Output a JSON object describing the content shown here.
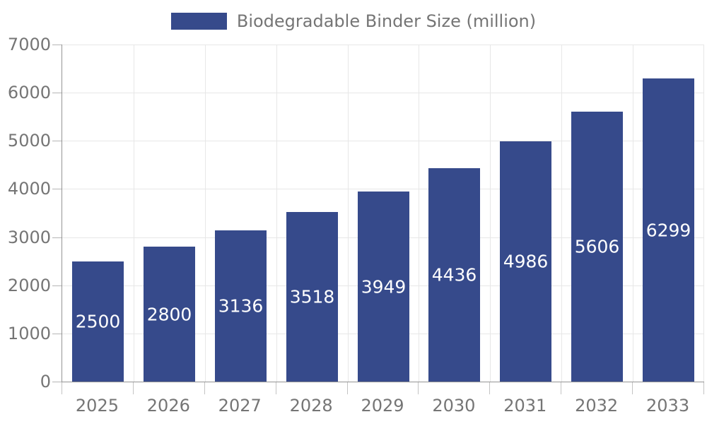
{
  "legend": {
    "label": "Biodegradable Binder Size (million)"
  },
  "chart_data": {
    "type": "bar",
    "title": "Biodegradable Binder Size (million)",
    "categories": [
      "2025",
      "2026",
      "2027",
      "2028",
      "2029",
      "2030",
      "2031",
      "2032",
      "2033"
    ],
    "values": [
      2500,
      2800,
      3136,
      3518,
      3949,
      4436,
      4986,
      5606,
      6299
    ],
    "xlabel": "",
    "ylabel": "",
    "ylim": [
      0,
      7000
    ],
    "ytick_step": 1000,
    "ytick_labels": [
      "0",
      "1000",
      "2000",
      "3000",
      "4000",
      "5000",
      "6000",
      "7000"
    ],
    "grid": true,
    "legend_position": "top-center",
    "value_labels": "centered-inside-bars"
  },
  "colors": {
    "bar": "#364A8B",
    "value_label": "#FFFFFF",
    "grid": "#E7E7E7",
    "axis_line": "#949494",
    "tick": "#B5B5B5",
    "tick_label": "#757575",
    "background": "#FFFFFF"
  }
}
